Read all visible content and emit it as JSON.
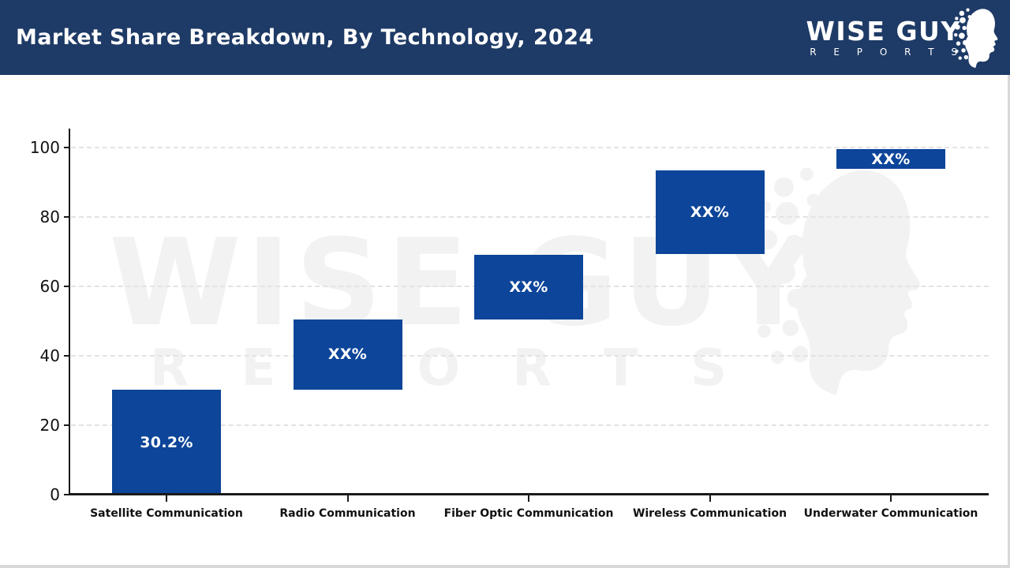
{
  "header": {
    "title": "Market Share Breakdown, By Technology, 2024",
    "logo": {
      "line1": "WISE GUY",
      "line2": "R E P O R T S"
    }
  },
  "watermark": {
    "line1": "WISE GUY",
    "line2": "R E P O R T S"
  },
  "colors": {
    "header_bg": "#1e3a66",
    "bar_fill": "#0c4599",
    "bar_value_text": "#ffffff",
    "gridline": "#e3e3e3",
    "axis": "#1a1a1a",
    "watermark": "#f2f2f2"
  },
  "chart_data": {
    "type": "bar",
    "subtype": "waterfall",
    "title": "Market Share Breakdown, By Technology, 2024",
    "xlabel": "",
    "ylabel": "",
    "categories": [
      "Satellite Communication",
      "Radio Communication",
      "Fiber Optic Communication",
      "Wireless Communication",
      "Underwater Communication"
    ],
    "segments": [
      {
        "start": 0,
        "end": 30.2,
        "label": "30.2%"
      },
      {
        "start": 30.2,
        "end": 50.5,
        "label": "XX%"
      },
      {
        "start": 50.5,
        "end": 69.1,
        "label": "XX%"
      },
      {
        "start": 69.3,
        "end": 93.4,
        "label": "XX%"
      },
      {
        "start": 93.9,
        "end": 99.5,
        "label": "XX%"
      }
    ],
    "yticks": [
      0,
      20,
      40,
      60,
      80,
      100
    ],
    "ylim": [
      0,
      107
    ],
    "grid": "horizontal-dashed",
    "legend": "none"
  }
}
